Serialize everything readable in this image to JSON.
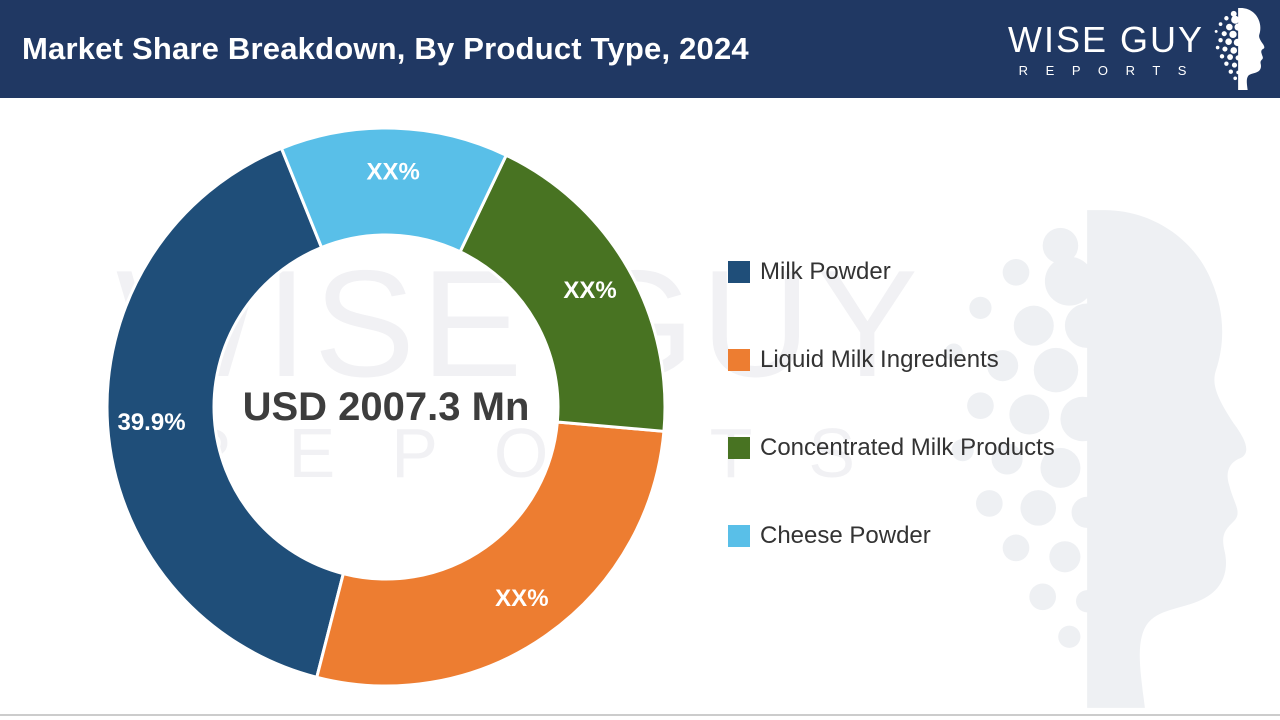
{
  "header": {
    "title": "Market Share Breakdown, By Product Type, 2024",
    "logo": {
      "line1": "WISE GUY",
      "line2": "R E P O R T S"
    }
  },
  "watermark": {
    "line1": "WISE GUY",
    "line2": "REPORTS"
  },
  "chart_data": {
    "type": "donut",
    "title": "Market Share Breakdown, By Product Type, 2024",
    "center_label": "USD 2007.3 Mn",
    "start_angle_deg": 112,
    "direction": "counterclockwise",
    "legend_position": "right",
    "segments": [
      {
        "name": "Milk Powder",
        "value_pct": 39.9,
        "display_label": "39.9%",
        "color": "#1F4E79"
      },
      {
        "name": "Liquid Milk Ingredients",
        "value_pct": 27.6,
        "display_label": "XX%",
        "color": "#ED7D31"
      },
      {
        "name": "Concentrated Milk Products",
        "value_pct": 19.3,
        "display_label": "XX%",
        "color": "#487322"
      },
      {
        "name": "Cheese Powder",
        "value_pct": 13.2,
        "display_label": "XX%",
        "color": "#59BFE8"
      }
    ]
  },
  "colors": {
    "header_bg": "#203863",
    "logo_text": "#ffffff",
    "center_text": "#3d3d3d",
    "legend_text": "#333333",
    "watermark": "#f1f1f4",
    "watermark_face": "#eef0f3",
    "bottom_line": "#cccccc"
  }
}
